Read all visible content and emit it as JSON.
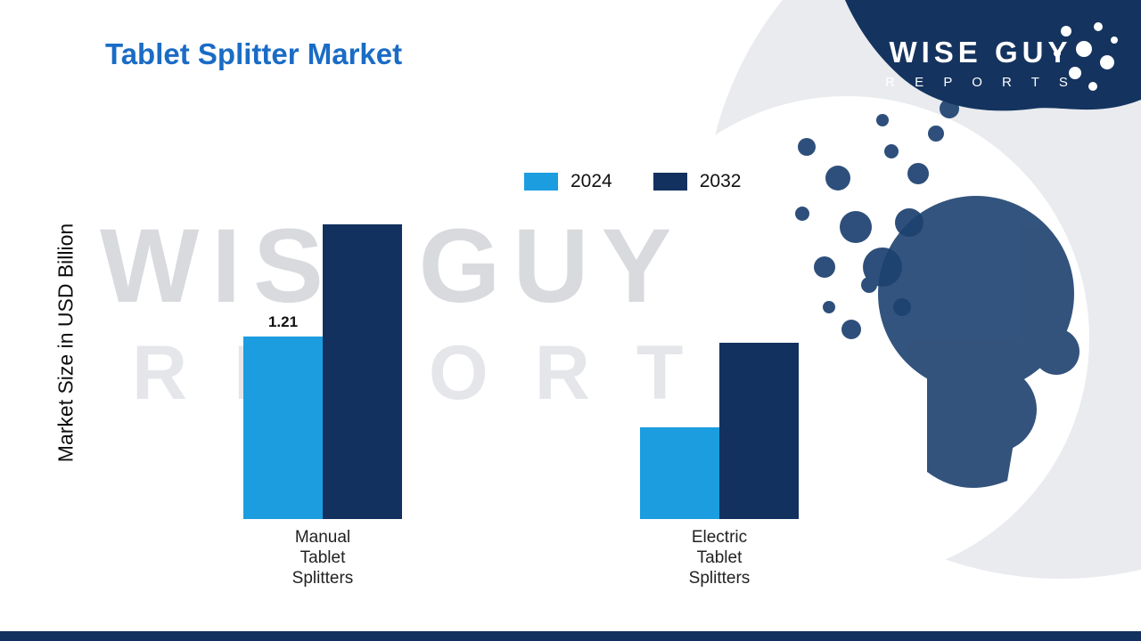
{
  "title": "Tablet Splitter Market",
  "ylabel": "Market Size in USD Billion",
  "watermark": {
    "line1": "WISEGUY",
    "line2": "REPORTS"
  },
  "logo": {
    "line1": "WISE GUY",
    "line2": "R E P O R T S"
  },
  "colors": {
    "title_blue": "#1a6cc5",
    "series_2024": "#1b9de0",
    "series_2032": "#12315f",
    "footer_navy": "#12315f",
    "corner_navy": "#14335f",
    "watermark_gray": "#d8dade",
    "background_gray": "#e9ebee"
  },
  "chart_data": {
    "type": "bar",
    "categories": [
      "Manual Tablet Splitters",
      "Electric Tablet Splitters"
    ],
    "category_label_lines": [
      [
        "Manual",
        "Tablet",
        "Splitters"
      ],
      [
        "Electric",
        "Tablet",
        "Splitters"
      ]
    ],
    "series": [
      {
        "name": "2024",
        "color": "#1b9de0",
        "values": [
          1.21,
          0.61
        ],
        "labels": [
          "1.21",
          ""
        ]
      },
      {
        "name": "2032",
        "color": "#12315f",
        "values": [
          1.95,
          1.17
        ],
        "labels": [
          "",
          ""
        ]
      }
    ],
    "title": "Tablet Splitter Market",
    "xlabel": "",
    "ylabel": "Market Size in USD Billion",
    "ylim": [
      0,
      2.0
    ],
    "grid": false,
    "legend_position": "top",
    "data_label_note": "Only the Manual Tablet Splitters 2024 bar shows a value label (1.21)"
  }
}
